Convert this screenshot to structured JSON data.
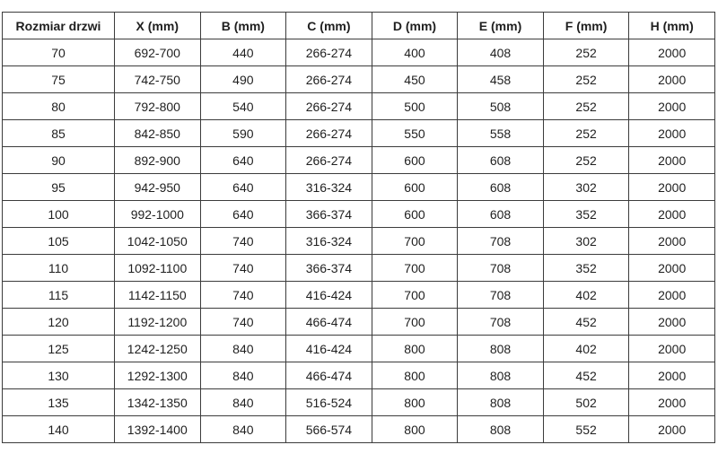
{
  "table": {
    "headers": [
      "Rozmiar drzwi",
      "X (mm)",
      "B (mm)",
      "C (mm)",
      "D (mm)",
      "E (mm)",
      "F (mm)",
      "H (mm)"
    ],
    "rows": [
      [
        "70",
        "692-700",
        "440",
        "266-274",
        "400",
        "408",
        "252",
        "2000"
      ],
      [
        "75",
        "742-750",
        "490",
        "266-274",
        "450",
        "458",
        "252",
        "2000"
      ],
      [
        "80",
        "792-800",
        "540",
        "266-274",
        "500",
        "508",
        "252",
        "2000"
      ],
      [
        "85",
        "842-850",
        "590",
        "266-274",
        "550",
        "558",
        "252",
        "2000"
      ],
      [
        "90",
        "892-900",
        "640",
        "266-274",
        "600",
        "608",
        "252",
        "2000"
      ],
      [
        "95",
        "942-950",
        "640",
        "316-324",
        "600",
        "608",
        "302",
        "2000"
      ],
      [
        "100",
        "992-1000",
        "640",
        "366-374",
        "600",
        "608",
        "352",
        "2000"
      ],
      [
        "105",
        "1042-1050",
        "740",
        "316-324",
        "700",
        "708",
        "302",
        "2000"
      ],
      [
        "110",
        "1092-1100",
        "740",
        "366-374",
        "700",
        "708",
        "352",
        "2000"
      ],
      [
        "115",
        "1142-1150",
        "740",
        "416-424",
        "700",
        "708",
        "402",
        "2000"
      ],
      [
        "120",
        "1192-1200",
        "740",
        "466-474",
        "700",
        "708",
        "452",
        "2000"
      ],
      [
        "125",
        "1242-1250",
        "840",
        "416-424",
        "800",
        "808",
        "402",
        "2000"
      ],
      [
        "130",
        "1292-1300",
        "840",
        "466-474",
        "800",
        "808",
        "452",
        "2000"
      ],
      [
        "135",
        "1342-1350",
        "840",
        "516-524",
        "800",
        "808",
        "502",
        "2000"
      ],
      [
        "140",
        "1392-1400",
        "840",
        "566-574",
        "800",
        "808",
        "552",
        "2000"
      ]
    ]
  },
  "colors": {
    "border": "#3c3c3c",
    "text": "#1f1f1f",
    "background": "#ffffff"
  }
}
